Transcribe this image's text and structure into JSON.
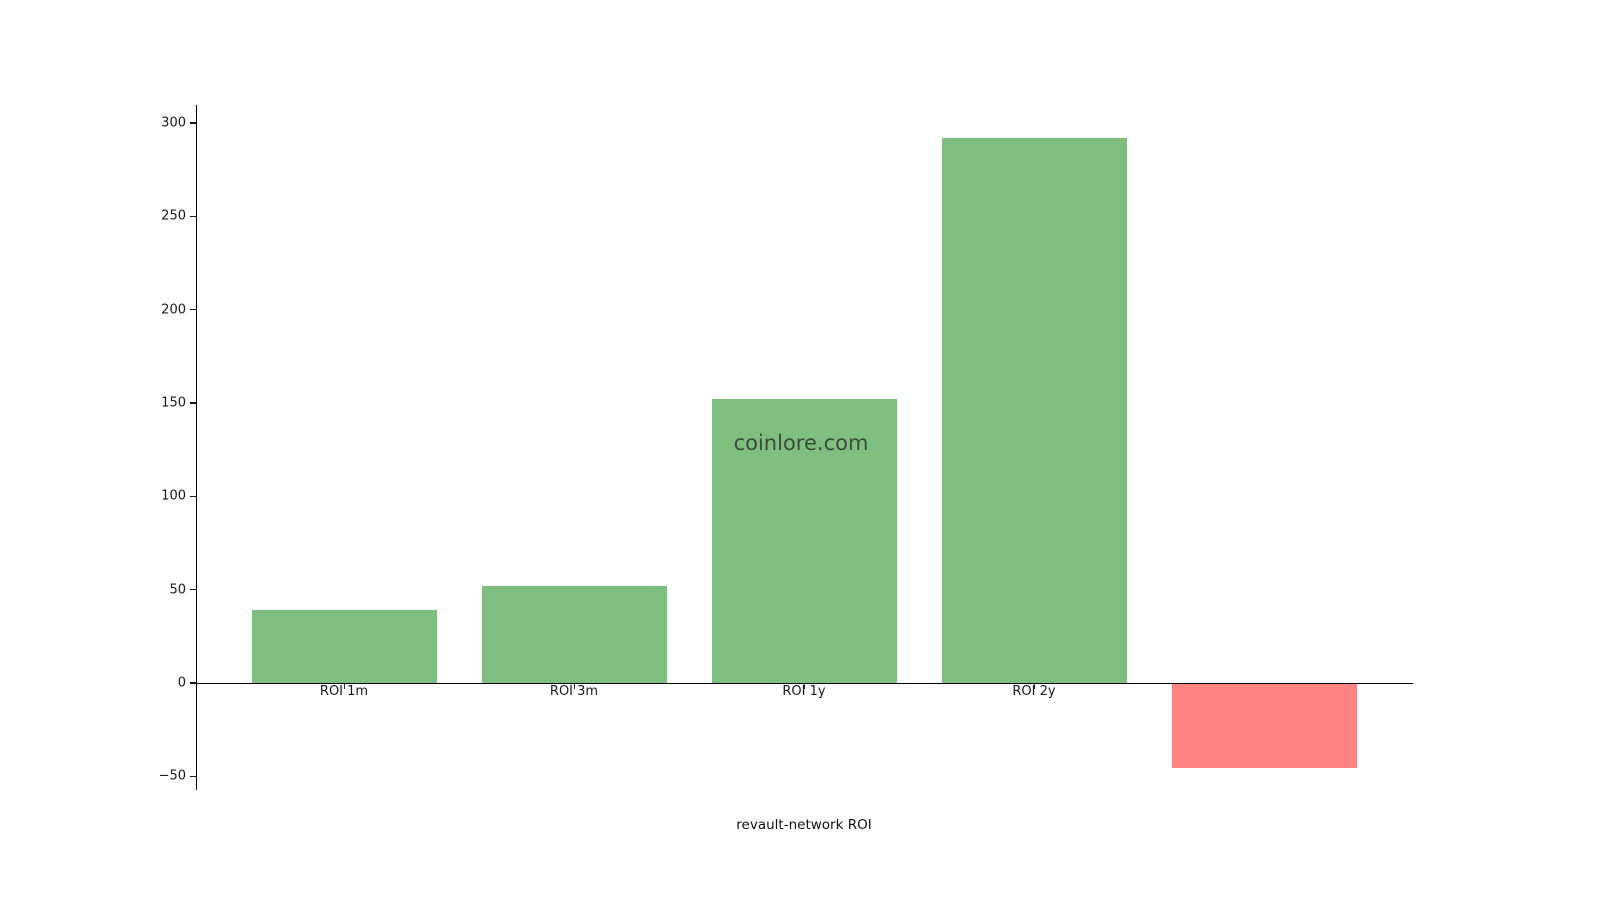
{
  "chart_data": {
    "type": "bar",
    "title": "revault-network ROI",
    "watermark": "coinlore.com",
    "categories": [
      "ROI 1m",
      "ROI 3m",
      "ROI 1y",
      "ROI 2y",
      ""
    ],
    "values": [
      39,
      52,
      152,
      292,
      -45
    ],
    "bar_colors": [
      "#7ebe7e",
      "#7ebe7e",
      "#7ebe7e",
      "#7ebe7e",
      "#fd8282"
    ],
    "positive_color": "#7ebe7e",
    "negative_color": "#fd8282",
    "yticks": [
      300,
      250,
      200,
      150,
      100,
      50,
      0,
      -50
    ],
    "ylim": [
      -57,
      310
    ],
    "xlabel": "",
    "ylabel": "",
    "grid": false,
    "legend": "none"
  }
}
